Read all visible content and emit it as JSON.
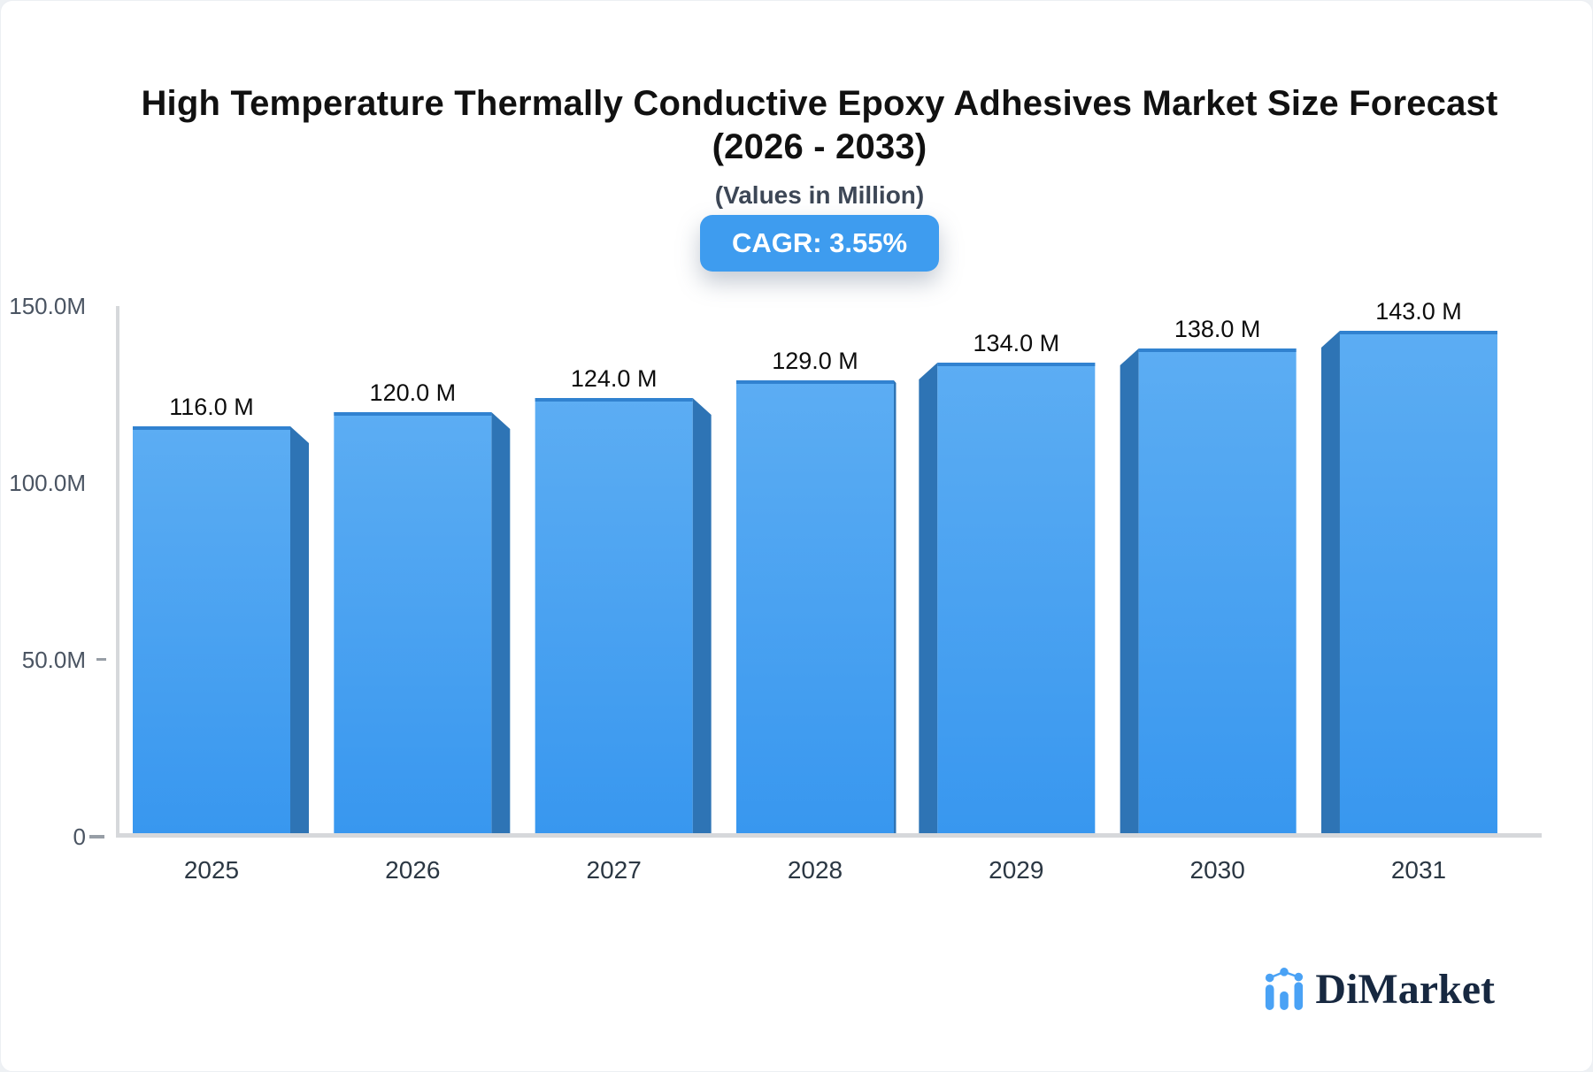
{
  "page": {
    "title_line1": "High Temperature Thermally Conductive Epoxy Adhesives Market Size Forecast",
    "title_line2": "(2026 - 2033)",
    "subtitle": "(Values in Million)",
    "cagr_badge": "CAGR: 3.55%",
    "brand": {
      "name": "DiMarket",
      "icon": "bar-line-chart-icon"
    }
  },
  "colors": {
    "accent_blue": "#3e9cef",
    "bar_gradient_top": "#5cadf3",
    "bar_gradient_bottom": "#3897ef",
    "bar_side_panel": "#2e74b5",
    "bar_top_strip": "#3182d0",
    "axis_line": "#d6d8db",
    "tick_mark": "#979ea6",
    "y_label": "#4a5462",
    "x_label": "#2b3743",
    "value_label": "#0d0d0d",
    "title_text": "#111111",
    "subtitle_text": "#3d4756",
    "logo_navy": "#172840",
    "logo_blue": "#4aa2f5"
  },
  "chart_data": {
    "type": "bar",
    "title": "High Temperature Thermally Conductive Epoxy Adhesives Market Size Forecast (2026 - 2033)",
    "subtitle": "(Values in Million)",
    "annotation": "CAGR: 3.55%",
    "categories": [
      "2025",
      "2026",
      "2027",
      "2028",
      "2029",
      "2030",
      "2031"
    ],
    "values": [
      116.0,
      120.0,
      124.0,
      129.0,
      134.0,
      138.0,
      143.0
    ],
    "value_labels": [
      "116.0 M",
      "120.0 M",
      "124.0 M",
      "129.0 M",
      "134.0 M",
      "138.0 M",
      "143.0 M"
    ],
    "xlabel": "",
    "ylabel": "",
    "ylim": [
      0,
      150
    ],
    "y_ticks": [
      {
        "label": "150.0M",
        "value": 150
      },
      {
        "label": "100.0M",
        "value": 100
      },
      {
        "label": "50.0M",
        "value": 50
      },
      {
        "label": "0",
        "value": 0
      }
    ],
    "grid": false,
    "legend": "none",
    "style": "pseudo-3d columns, perspective toward center"
  }
}
